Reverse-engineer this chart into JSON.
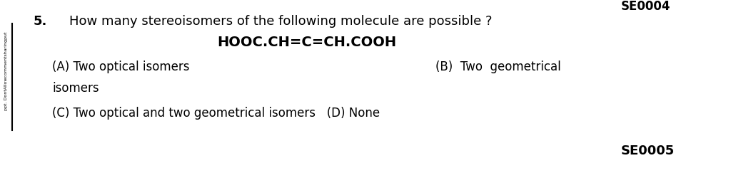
{
  "bg_color": "#ffffff",
  "question_number": "5.",
  "question_text": "How many stereoisomers of the following molecule are possible ?",
  "molecule": "HOOC.CH=C=CH.COOH",
  "option_A": "(A) Two optical isomers",
  "option_B": "(B)  Two  geometrical",
  "option_B2": "isomers",
  "option_C": "(C) Two optical and two geometrical isomers   (D) None",
  "header_code": "SE0004",
  "footer_code": "SE0005",
  "sidebar_text": "ppt. DontAllowcommentsharingput",
  "q_fontsize": 13,
  "molecule_fontsize": 14,
  "option_fontsize": 12,
  "code_fontsize": 12
}
